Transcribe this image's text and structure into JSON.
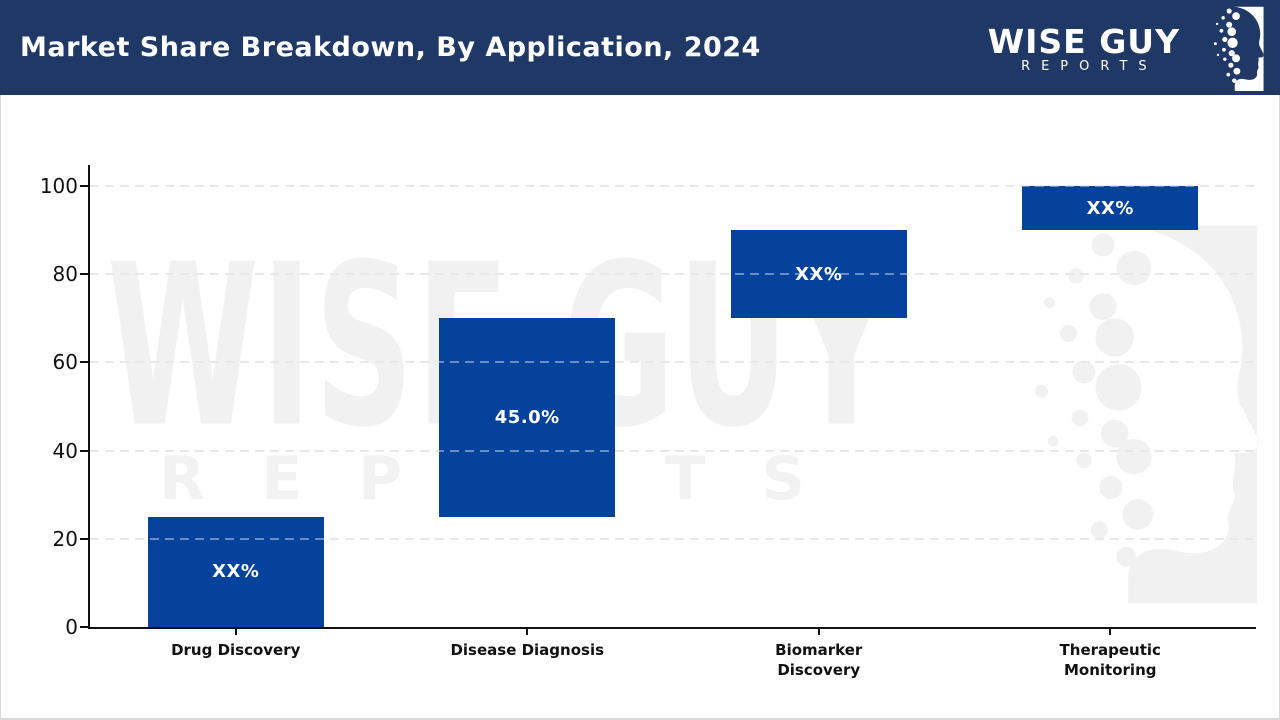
{
  "header": {
    "title": "Market Share Breakdown, By Application, 2024",
    "logo": {
      "wordmark": "WISE GUY",
      "subtext": "REPORTS"
    }
  },
  "watermark": {
    "wordmark": "WISE GUY",
    "subtext": "REPORTS"
  },
  "chart_data": {
    "type": "bar",
    "subtype": "floating-segment-waterfall",
    "title": "Market Share Breakdown, By Application, 2024",
    "categories": [
      "Drug Discovery",
      "Disease Diagnosis",
      "Biomarker Discovery",
      "Therapeutic Monitoring"
    ],
    "category_label_lines": [
      "Drug Discovery",
      "Disease Diagnosis",
      "Biomarker\nDiscovery",
      "Therapeutic\nMonitoring"
    ],
    "segments": [
      {
        "category": "Drug Discovery",
        "from": 0,
        "to": 25,
        "label": "XX%"
      },
      {
        "category": "Disease Diagnosis",
        "from": 25,
        "to": 70,
        "label": "45.0%"
      },
      {
        "category": "Biomarker Discovery",
        "from": 70,
        "to": 90,
        "label": "XX%"
      },
      {
        "category": "Therapeutic Monitoring",
        "from": 90,
        "to": 100,
        "label": "XX%"
      }
    ],
    "yticks": [
      0,
      20,
      40,
      60,
      80,
      100
    ],
    "ylim": [
      0,
      105
    ],
    "xlabel": "",
    "ylabel": "",
    "grid": {
      "horizontal": true,
      "style": "dashed",
      "color": "#d9d9d9"
    },
    "legend_position": "none",
    "bar_color": "#05429b",
    "bar_label_color": "#ffffff",
    "axis_color": "#111111"
  },
  "colors": {
    "header_bg": "#1f3865",
    "bar": "#05429b",
    "page_bg": "#ffffff",
    "frame_border": "#d9d9d9",
    "watermark": "#f1f1f1"
  }
}
